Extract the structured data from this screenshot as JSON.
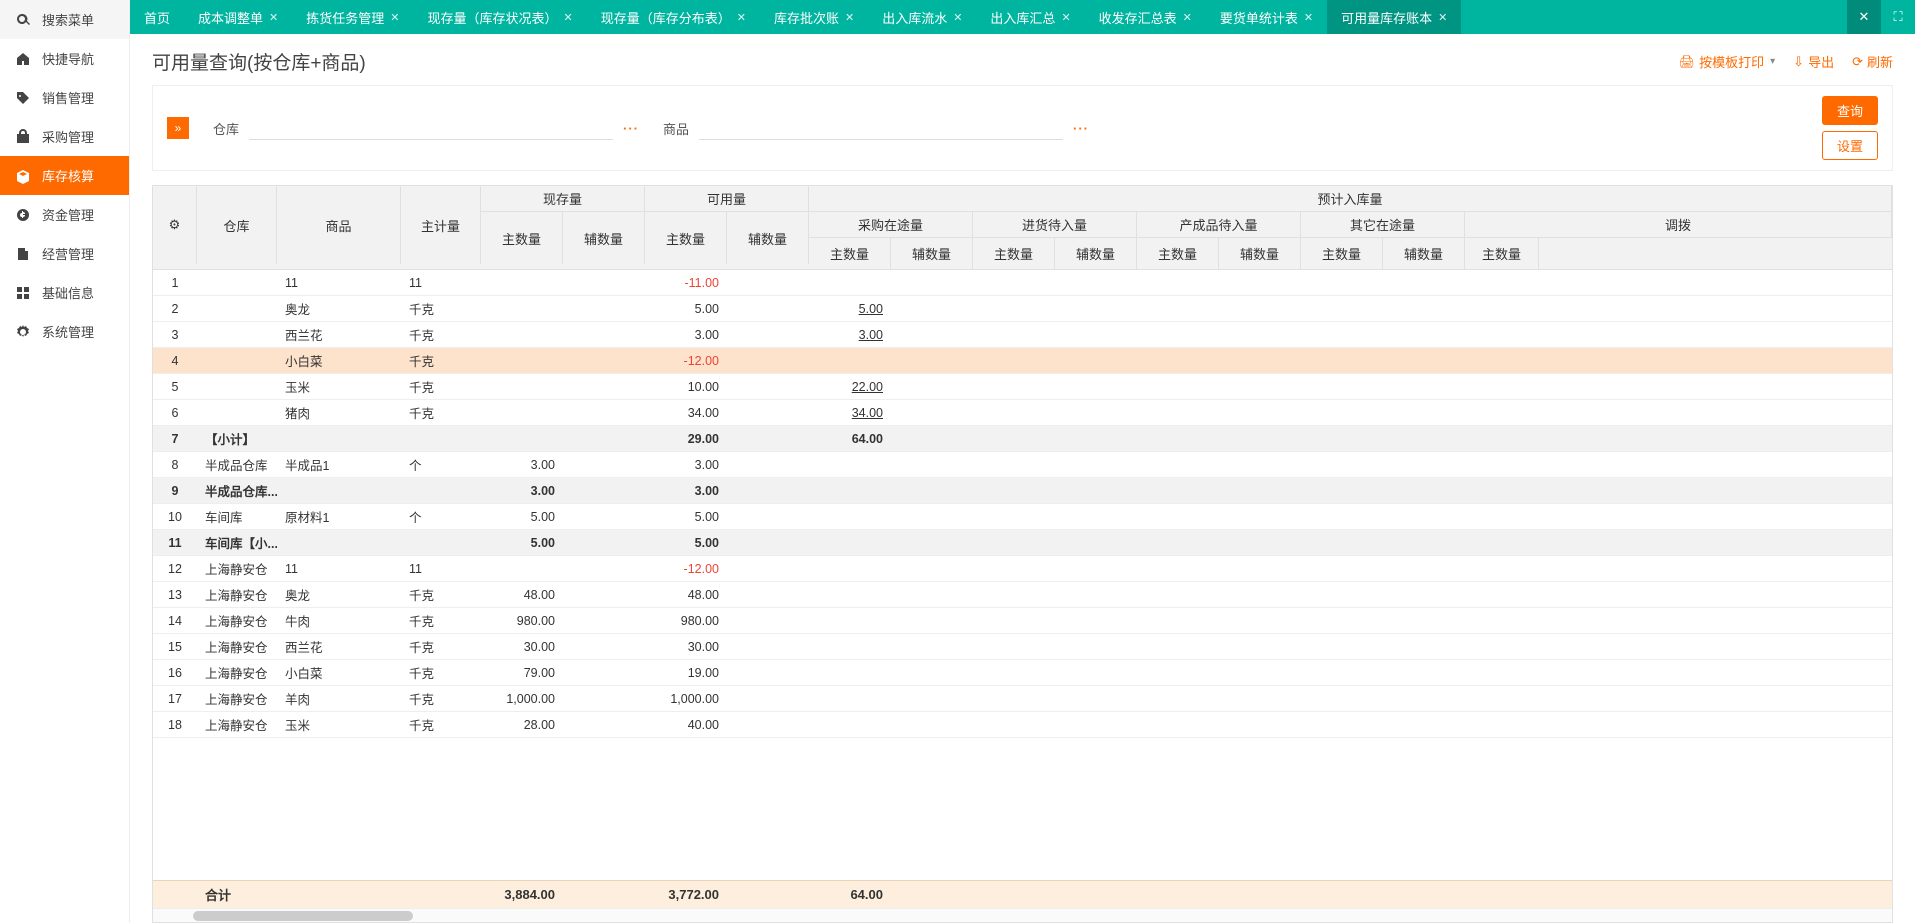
{
  "colors": {
    "accent": "#ff6a00",
    "teal": "#00b5a0",
    "tealActive": "#009483",
    "neg": "#ee4433"
  },
  "sidebar": {
    "items": [
      {
        "label": "搜索菜单",
        "icon": "search"
      },
      {
        "label": "快捷导航",
        "icon": "home"
      },
      {
        "label": "销售管理",
        "icon": "tag"
      },
      {
        "label": "采购管理",
        "icon": "bag"
      },
      {
        "label": "库存核算",
        "icon": "box",
        "active": true
      },
      {
        "label": "资金管理",
        "icon": "money"
      },
      {
        "label": "经营管理",
        "icon": "doc"
      },
      {
        "label": "基础信息",
        "icon": "grid"
      },
      {
        "label": "系统管理",
        "icon": "gear"
      }
    ]
  },
  "tabs": {
    "items": [
      {
        "label": "首页",
        "closable": false
      },
      {
        "label": "成本调整单",
        "closable": true
      },
      {
        "label": "拣货任务管理",
        "closable": true
      },
      {
        "label": "现存量（库存状况表）",
        "closable": true
      },
      {
        "label": "现存量（库存分布表）",
        "closable": true
      },
      {
        "label": "库存批次账",
        "closable": true
      },
      {
        "label": "出入库流水",
        "closable": true
      },
      {
        "label": "出入库汇总",
        "closable": true
      },
      {
        "label": "收发存汇总表",
        "closable": true
      },
      {
        "label": "要货单统计表",
        "closable": true
      },
      {
        "label": "可用量库存账本",
        "closable": true,
        "active": true
      }
    ]
  },
  "page": {
    "title": "可用量查询(按仓库+商品)"
  },
  "toolbar": {
    "print": "按模板打印",
    "export": "导出",
    "refresh": "刷新"
  },
  "filter": {
    "warehouse_label": "仓库",
    "warehouse_val": "",
    "product_label": "商品",
    "product_val": "",
    "more": "···",
    "query": "查询",
    "settings": "设置"
  },
  "header": {
    "gear": "⚙",
    "warehouse": "仓库",
    "product": "商品",
    "unit": "主计量",
    "stock": "现存量",
    "avail": "可用量",
    "expected": "预计入库量",
    "purchase": "采购在途量",
    "pending": "进货待入量",
    "wip": "产成品待入量",
    "other": "其它在途量",
    "adjust": "调拨",
    "main": "主数量",
    "aux": "辅数量"
  },
  "rows": [
    {
      "n": "1",
      "wh": "",
      "prod": "11",
      "unit": "11",
      "sMain": "",
      "sAux": "",
      "aMain": "-11.00",
      "neg": true
    },
    {
      "n": "2",
      "wh": "",
      "prod": "奥龙",
      "unit": "千克",
      "aMain": "5.00",
      "pMain": "5.00",
      "ul": true
    },
    {
      "n": "3",
      "wh": "",
      "prod": "西兰花",
      "unit": "千克",
      "aMain": "3.00",
      "pMain": "3.00",
      "ul": true
    },
    {
      "n": "4",
      "wh": "",
      "prod": "小白菜",
      "unit": "千克",
      "aMain": "-12.00",
      "neg": true,
      "hl": true
    },
    {
      "n": "5",
      "wh": "",
      "prod": "玉米",
      "unit": "千克",
      "aMain": "10.00",
      "pMain": "22.00",
      "ul": true
    },
    {
      "n": "6",
      "wh": "",
      "prod": "猪肉",
      "unit": "千克",
      "aMain": "34.00",
      "pMain": "34.00",
      "ul": true
    },
    {
      "n": "7",
      "wh": "【小计】",
      "sub": true,
      "aMain": "29.00",
      "pMain": "64.00"
    },
    {
      "n": "8",
      "wh": "半成品仓库",
      "prod": "半成品1",
      "unit": "个",
      "sMain": "3.00",
      "aMain": "3.00"
    },
    {
      "n": "9",
      "wh": "半成品仓库...",
      "sub": true,
      "sMain": "3.00",
      "aMain": "3.00"
    },
    {
      "n": "10",
      "wh": "车间库",
      "prod": "原材料1",
      "unit": "个",
      "sMain": "5.00",
      "aMain": "5.00"
    },
    {
      "n": "11",
      "wh": "车间库【小...",
      "sub": true,
      "sMain": "5.00",
      "aMain": "5.00"
    },
    {
      "n": "12",
      "wh": "上海静安仓",
      "prod": "11",
      "unit": "11",
      "aMain": "-12.00",
      "neg": true
    },
    {
      "n": "13",
      "wh": "上海静安仓",
      "prod": "奥龙",
      "unit": "千克",
      "sMain": "48.00",
      "aMain": "48.00"
    },
    {
      "n": "14",
      "wh": "上海静安仓",
      "prod": "牛肉",
      "unit": "千克",
      "sMain": "980.00",
      "aMain": "980.00"
    },
    {
      "n": "15",
      "wh": "上海静安仓",
      "prod": "西兰花",
      "unit": "千克",
      "sMain": "30.00",
      "aMain": "30.00"
    },
    {
      "n": "16",
      "wh": "上海静安仓",
      "prod": "小白菜",
      "unit": "千克",
      "sMain": "79.00",
      "aMain": "19.00"
    },
    {
      "n": "17",
      "wh": "上海静安仓",
      "prod": "羊肉",
      "unit": "千克",
      "sMain": "1,000.00",
      "aMain": "1,000.00"
    },
    {
      "n": "18",
      "wh": "上海静安仓",
      "prod": "玉米",
      "unit": "千克",
      "sMain": "28.00",
      "aMain": "40.00",
      "neg": false
    }
  ],
  "footer": {
    "label": "合计",
    "sMain": "3,884.00",
    "aMain": "3,772.00",
    "pMain": "64.00"
  }
}
